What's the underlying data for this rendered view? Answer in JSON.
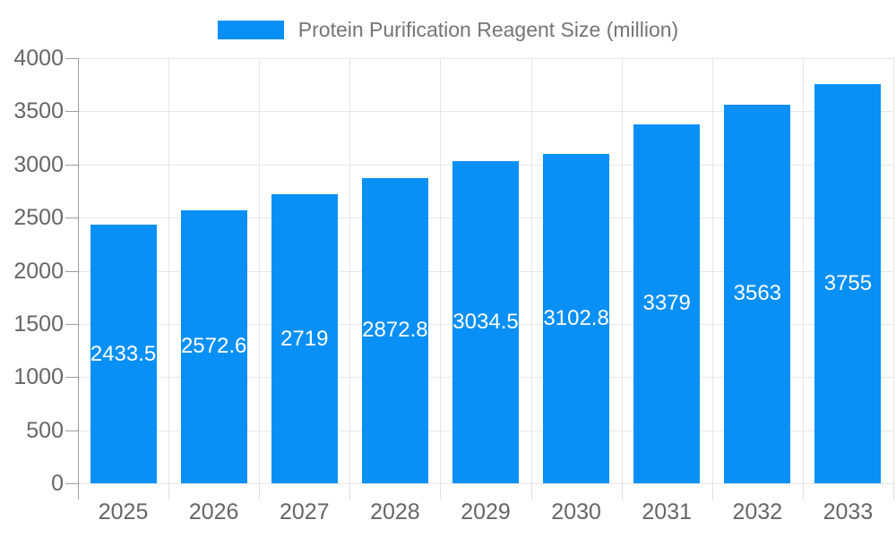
{
  "legend": {
    "label": "Protein Purification Reagent Size (million)"
  },
  "chart_data": {
    "type": "bar",
    "title": "Protein Purification Reagent Size (million)",
    "categories": [
      "2025",
      "2026",
      "2027",
      "2028",
      "2029",
      "2030",
      "2031",
      "2032",
      "2033"
    ],
    "values": [
      2433.5,
      2572.6,
      2719,
      2872.8,
      3034.5,
      3102.8,
      3379,
      3563,
      3755
    ],
    "value_labels": [
      "2433.5",
      "2572.6",
      "2719",
      "2872.8",
      "3034.5",
      "3102.8",
      "3379",
      "3563",
      "3755"
    ],
    "xlabel": "",
    "ylabel": "",
    "ylim": [
      0,
      4000
    ],
    "yticks": [
      0,
      500,
      1000,
      1500,
      2000,
      2500,
      3000,
      3500,
      4000
    ],
    "grid": true,
    "legend_position": "top center",
    "bar_color": "#0890f6",
    "value_label_color": "#ffffff",
    "axis_label_color": "#666666",
    "grid_color": "#e6e6e6",
    "axis_line_color": "#9e9e9e",
    "legend_text_color": "#757575"
  }
}
